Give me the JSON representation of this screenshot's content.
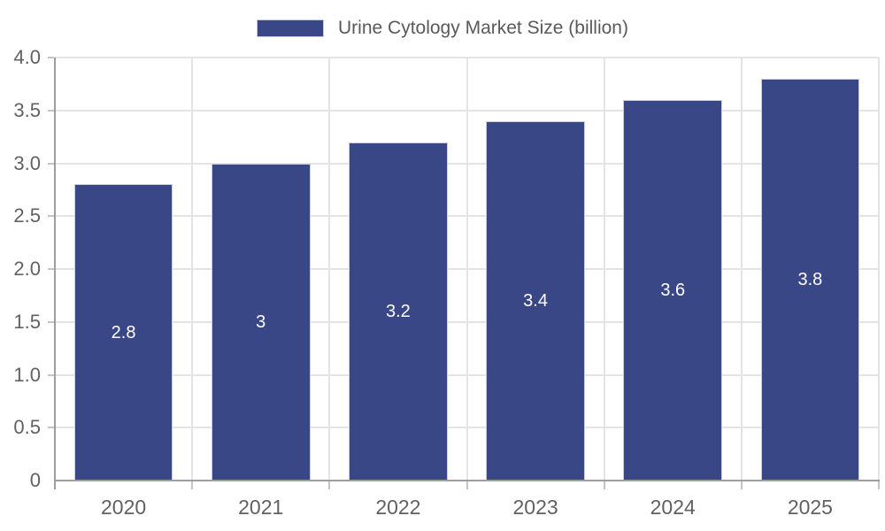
{
  "chart_data": {
    "type": "bar",
    "legend_label": "Urine Cytology Market Size (billion)",
    "legend_position": "top-center",
    "categories": [
      "2020",
      "2021",
      "2022",
      "2023",
      "2024",
      "2025"
    ],
    "values": [
      2.8,
      3.0,
      3.2,
      3.4,
      3.6,
      3.8
    ],
    "bar_labels": [
      "2.8",
      "3",
      "3.2",
      "3.4",
      "3.6",
      "3.8"
    ],
    "xlabel": "",
    "ylabel": "",
    "ylim": [
      0,
      4.0
    ],
    "ytick_step": 0.5,
    "ytick_labels": [
      "0",
      "0.5",
      "1.0",
      "1.5",
      "2.0",
      "2.5",
      "3.0",
      "3.5",
      "4.0"
    ],
    "grid": "on",
    "colors": {
      "bar": "#3A4787",
      "bar_edge": "#c9cdde",
      "bar_label_text": "#ffffff",
      "grid": "#e4e4e4",
      "axis": "#9e9e9e",
      "tick": "#c4c4c4",
      "tick_label_text": "#616161",
      "legend_text": "#595959",
      "background": "#ffffff"
    }
  }
}
